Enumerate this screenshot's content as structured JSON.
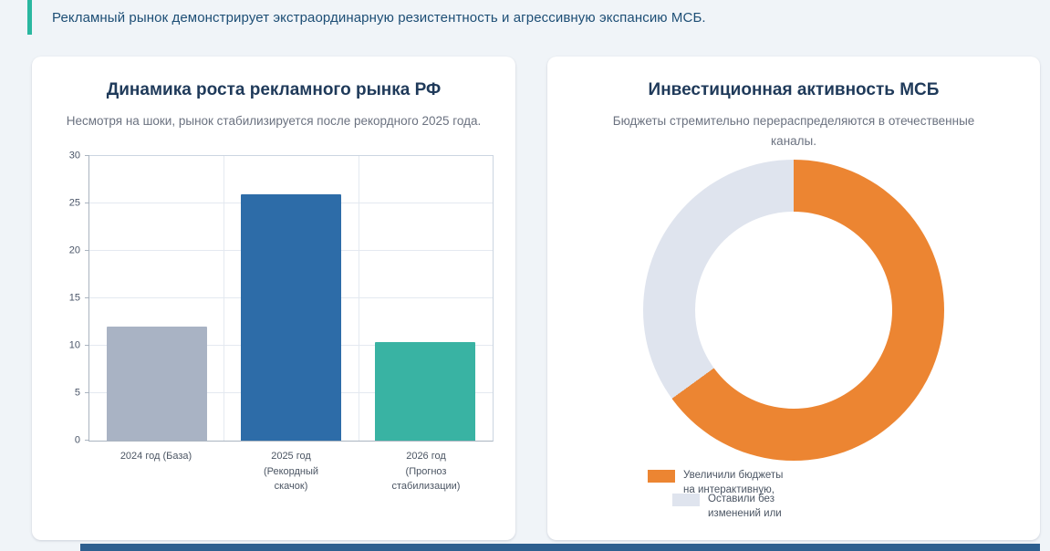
{
  "header": {
    "text": "Рекламный рынок демонстрирует экстраординарную резистентность и агрессивную экспансию МСБ."
  },
  "colors": {
    "accent_teal": "#2ab7a0",
    "header_text": "#1d4e75",
    "title_text": "#1f3a5a",
    "next_section_strip": "#2d5f8f"
  },
  "chart_data": [
    {
      "type": "bar",
      "title": "Динамика роста рекламного рынка РФ",
      "subtitle": "Несмотря на шоки, рынок стабилизируется после рекордного 2025 года.",
      "categories": [
        "2024 год (База)",
        "2025 год\n(Рекордный\nскачок)",
        "2026 год\n(Прогноз\nстабилизации)"
      ],
      "values": [
        12,
        26,
        10.4
      ],
      "bar_colors": [
        "#a9b3c4",
        "#2d6ca8",
        "#39b3a3"
      ],
      "ylim": [
        0,
        30
      ],
      "yticks": [
        0,
        5,
        10,
        15,
        20,
        25,
        30
      ],
      "grid": true,
      "legend": false,
      "xlabel": "",
      "ylabel": ""
    },
    {
      "type": "pie",
      "donut": true,
      "title": "Инвестиционная активность МСБ",
      "subtitle": "Бюджеты стремительно перераспределяются в отечественные каналы.",
      "labels": [
        "Увеличили бюджеты на интерактивную,",
        "Оставили без изменений или"
      ],
      "values": [
        65,
        35
      ],
      "colors": [
        "#ec8532",
        "#dfe4ee"
      ],
      "legend_position": "bottom"
    }
  ]
}
